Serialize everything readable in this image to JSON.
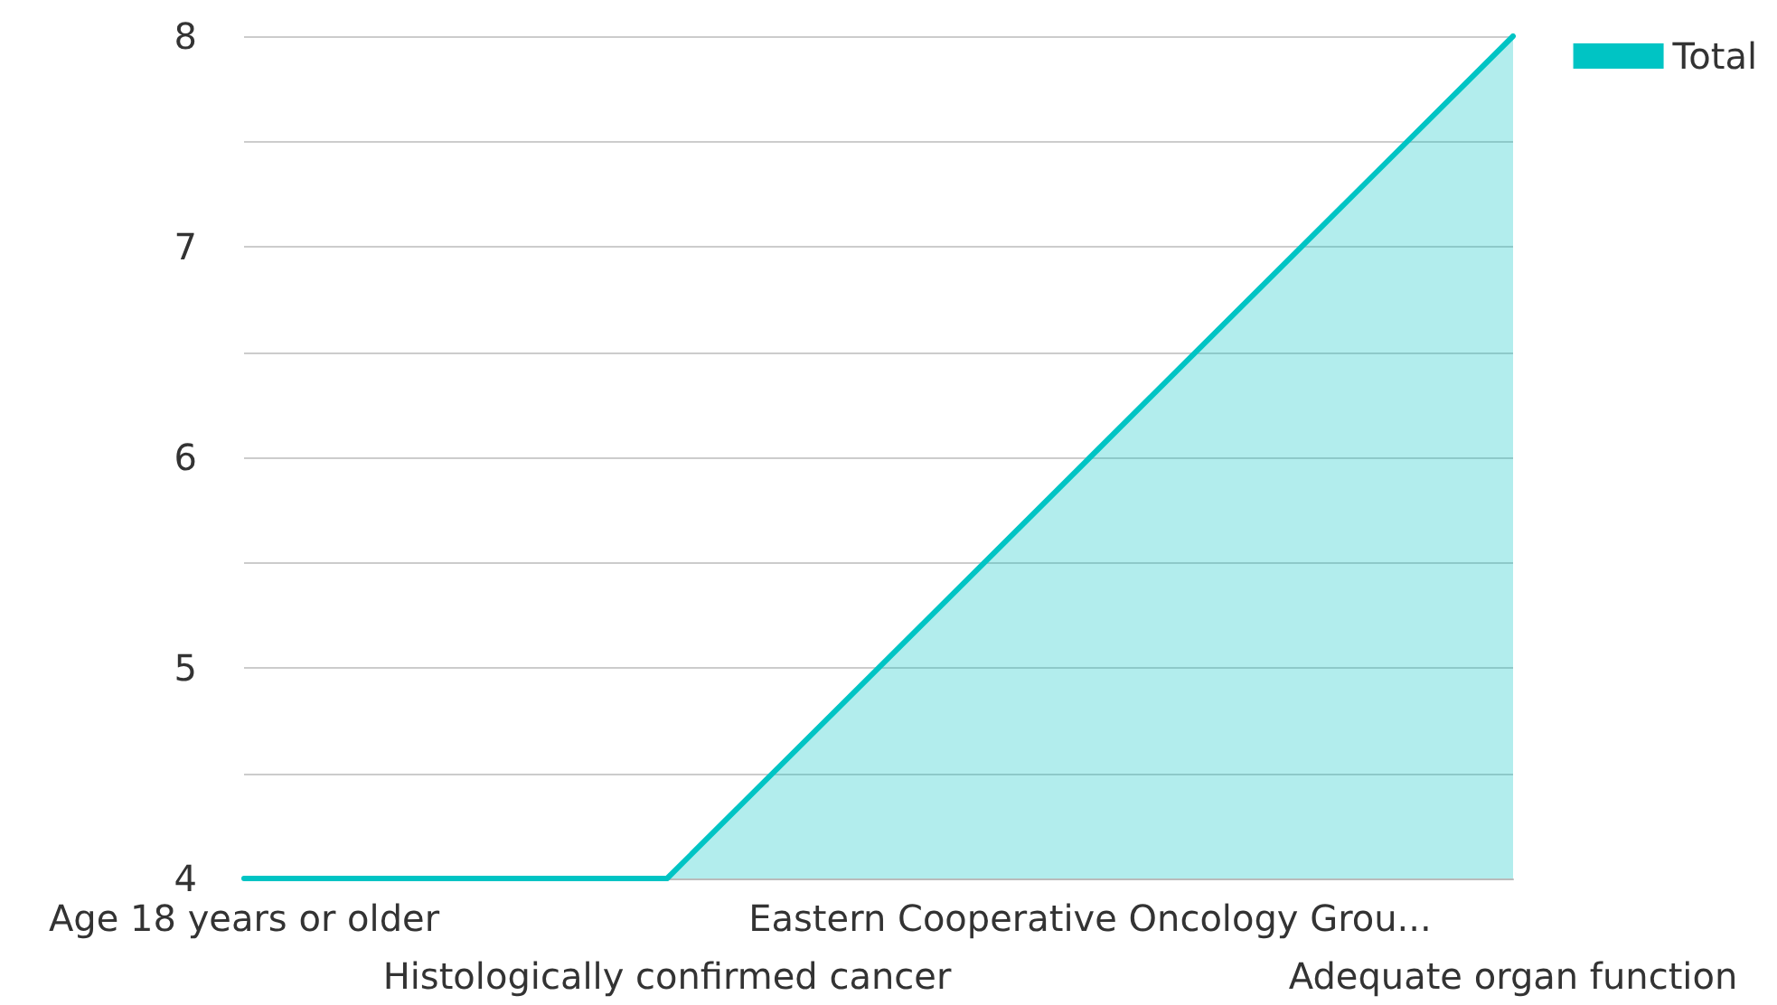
{
  "chart_data": {
    "type": "area",
    "categories": [
      "Age 18 years or older",
      "Histologically confirmed cancer",
      "Eastern Cooperative Oncology Grou...",
      "Adequate organ function"
    ],
    "series": [
      {
        "name": "Total",
        "color": "#00c4c4",
        "values": [
          4,
          4,
          6,
          8
        ]
      }
    ],
    "ylim": [
      4,
      8
    ],
    "yticks": [
      4,
      {
        "value": 4.5,
        "label": null
      },
      5,
      {
        "value": 5.5,
        "label": null
      },
      6,
      {
        "value": 6.5,
        "label": null
      },
      7,
      {
        "value": 7.5,
        "label": null
      },
      8
    ],
    "grid": "y",
    "legend": "top right",
    "marker": "none"
  }
}
